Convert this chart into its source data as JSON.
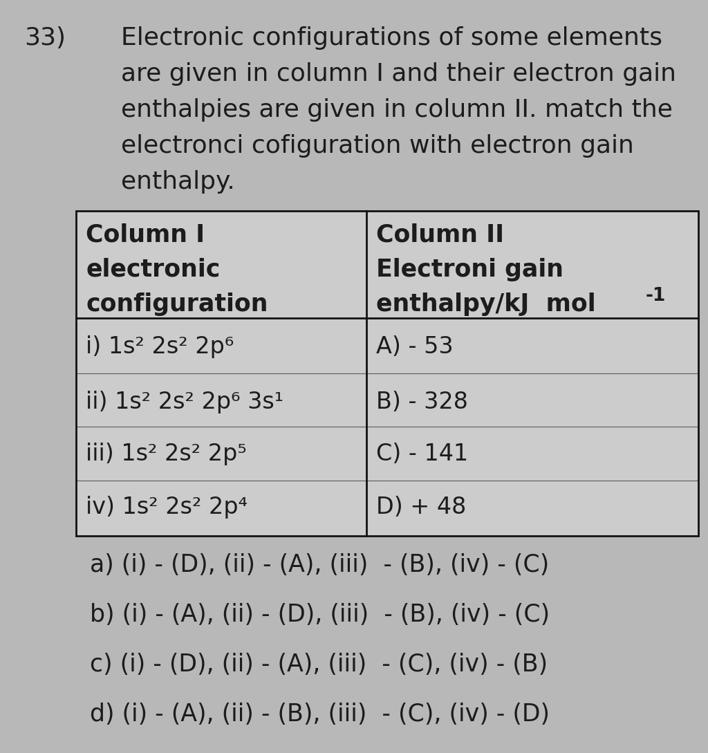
{
  "background_color": "#b8b8b8",
  "question_number": "33)",
  "question_lines": [
    "Electronic configurations of some elements",
    "are given in column I and their electron gain",
    "enthalpies are given in column II. match the",
    "electronci cofiguration with electron gain",
    "enthalpy."
  ],
  "col1_header": [
    "Column I",
    "electronic",
    "configuration"
  ],
  "col2_header": [
    "Column II",
    "Electroni gain",
    "enthalpy/kJ  mol"
  ],
  "col1_rows": [
    "i) 1s² 2s² 2p⁶",
    "ii) 1s² 2s² 2p⁶ 3s¹",
    "iii) 1s² 2s² 2p⁵",
    "iv) 1s² 2s² 2p⁴"
  ],
  "col2_rows": [
    "A) - 53",
    "B) - 328",
    "C) - 141",
    "D) + 48"
  ],
  "options": [
    "a) (i) - (D), (ii) - (A), (iii)  - (B), (iv) - (C)",
    "b) (i) - (A), (ii) - (D), (iii)  - (B), (iv) - (C)",
    "c) (i) - (D), (ii) - (A), (iii)  - (C), (iv) - (B)",
    "d) (i) - (A), (ii) - (B), (iii)  - (C), (iv) - (D)"
  ],
  "text_color": "#1c1c1c",
  "table_border_color": "#111111",
  "font_size_question": 26,
  "font_size_table_header": 25,
  "font_size_table_body": 24,
  "font_size_options": 25
}
